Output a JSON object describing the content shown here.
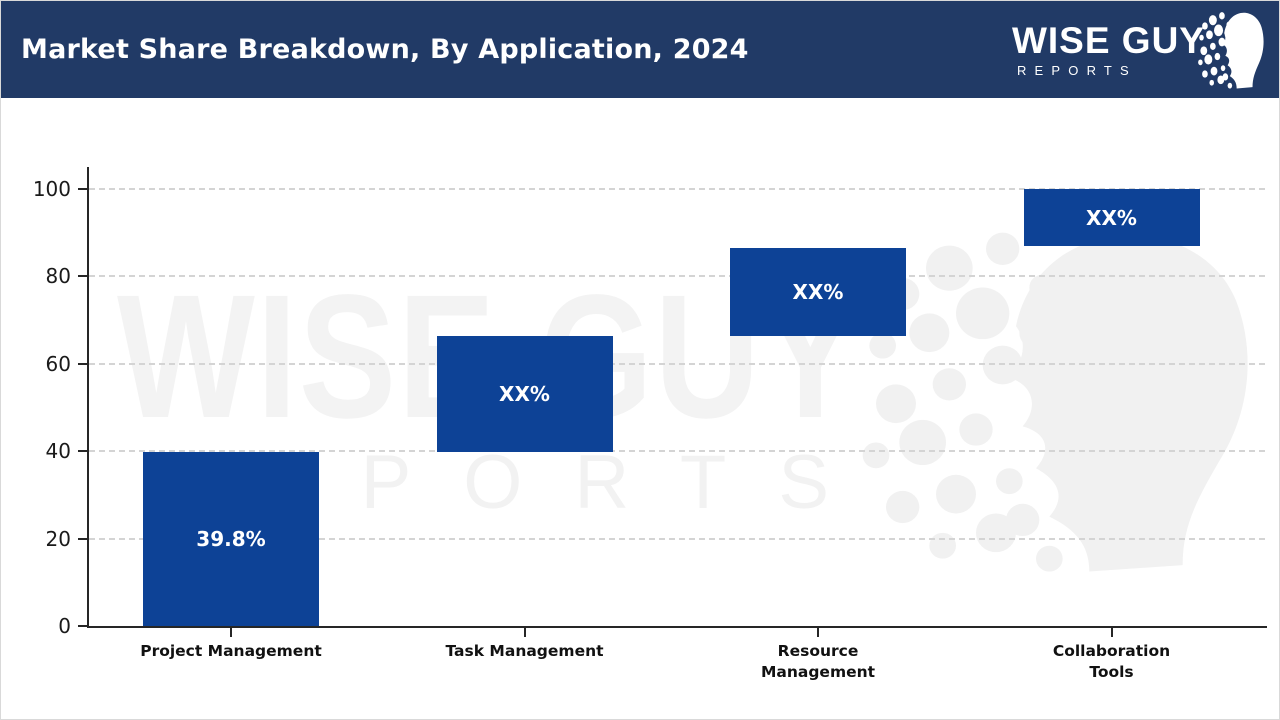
{
  "page": {
    "bg": "#ffffff",
    "edge_line_color": "#d9d9d9"
  },
  "header": {
    "bg_color": "#213A66",
    "title": "Market Share Breakdown, By Application, 2024",
    "logo": {
      "name": "WISE GUY",
      "tagline": "REPORTS"
    }
  },
  "watermark": {
    "line1": "WISE GUY",
    "line2": "REPORTS",
    "color": "#f2f2f2"
  },
  "chart_data": {
    "type": "bar",
    "variant": "waterfall",
    "title": "Market Share Breakdown, By Application, 2024",
    "categories": [
      "Project Management",
      "Task Management",
      "Resource Management",
      "Collaboration Tools"
    ],
    "category_label_lines": [
      [
        "Project Management"
      ],
      [
        "Task Management"
      ],
      [
        "Resource",
        "Management"
      ],
      [
        "Collaboration",
        "Tools"
      ]
    ],
    "segments": [
      {
        "category": "Project Management",
        "start": 0,
        "end": 39.8,
        "label": "39.8%"
      },
      {
        "category": "Task Management",
        "start": 39.8,
        "end": 66.3,
        "label": "XX%"
      },
      {
        "category": "Resource Management",
        "start": 66.4,
        "end": 86.5,
        "label": "XX%"
      },
      {
        "category": "Collaboration Tools",
        "start": 86.9,
        "end": 100,
        "label": "XX%"
      }
    ],
    "ylim": [
      0,
      100
    ],
    "yticks": [
      0,
      20,
      40,
      60,
      80,
      100
    ],
    "xlabel": "",
    "ylabel": "",
    "grid": {
      "axis": "y",
      "style": "dashed",
      "color": "#d4d4d4"
    },
    "legend": null,
    "bar_color": "#0D4296",
    "bar_label_color": "#ffffff",
    "axis_color": "#262626",
    "tick_label_color": "#1a1a1a"
  }
}
